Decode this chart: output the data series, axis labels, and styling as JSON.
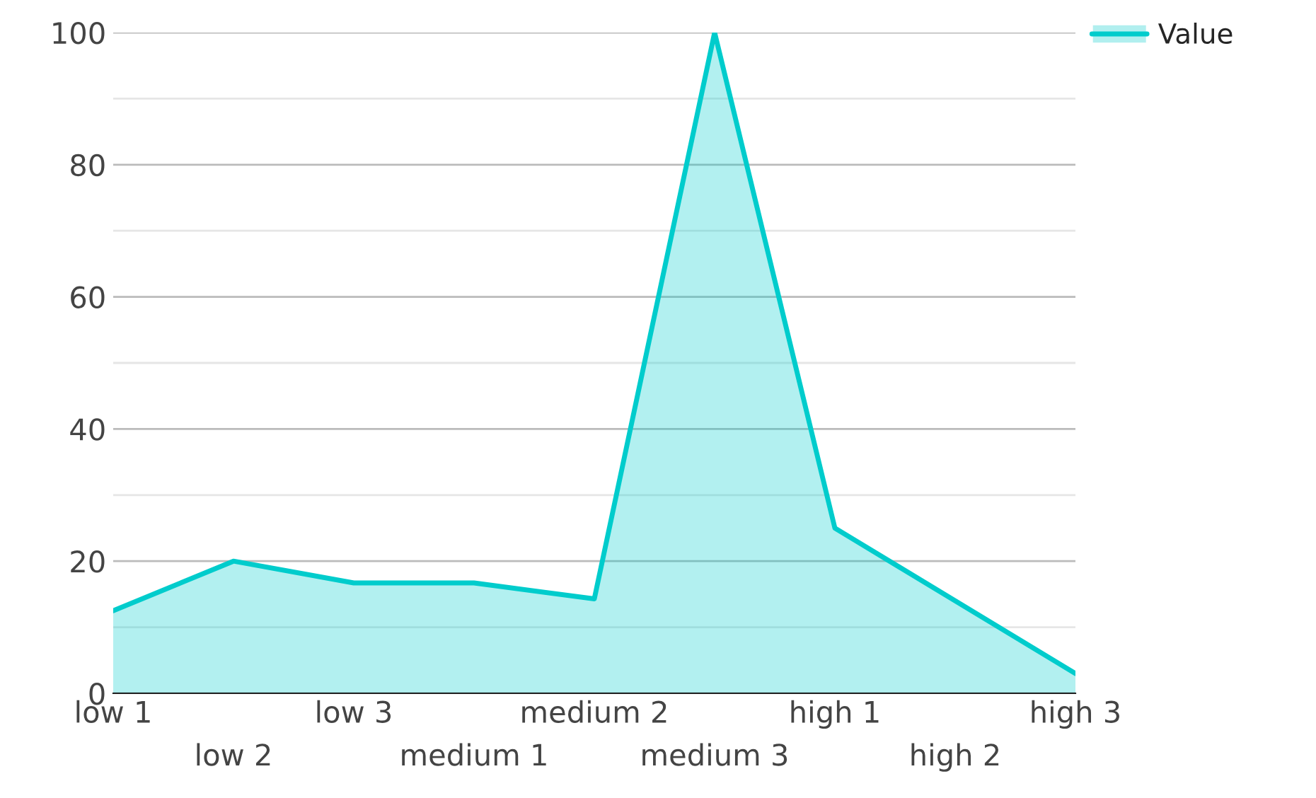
{
  "chart_data": {
    "type": "area",
    "categories": [
      "low 1",
      "low 2",
      "low 3",
      "medium 1",
      "medium 2",
      "medium 3",
      "high 1",
      "high 2",
      "high 3"
    ],
    "series": [
      {
        "name": "Value",
        "color": "#00cccc",
        "values": [
          12.5,
          20,
          16.7,
          16.7,
          14.3,
          100,
          25,
          14,
          3
        ]
      }
    ],
    "ylim": [
      0,
      100
    ],
    "yticks": [
      0,
      {
        "value": 10,
        "label": null
      },
      20,
      {
        "value": 30,
        "label": null
      },
      40,
      {
        "value": 50,
        "label": null
      },
      60,
      {
        "value": 70,
        "label": null
      },
      80,
      {
        "value": 90,
        "label": null
      },
      100
    ],
    "grid": "y",
    "legend": "top right",
    "marker": "none",
    "line_style": "solid"
  }
}
